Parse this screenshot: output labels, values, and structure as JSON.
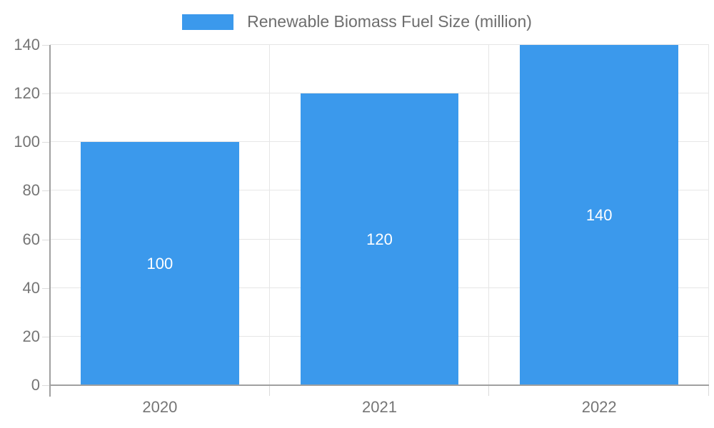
{
  "chart_data": {
    "type": "bar",
    "title": "Renewable Biomass Fuel Size (million)",
    "categories": [
      "2020",
      "2021",
      "2022"
    ],
    "values": [
      100,
      120,
      140
    ],
    "data_labels": [
      "100",
      "120",
      "140"
    ],
    "xlabel": "",
    "ylabel": "",
    "ylim": [
      0,
      140
    ],
    "yticks": [
      0,
      20,
      40,
      60,
      80,
      100,
      120,
      140
    ],
    "grid": true,
    "legend_position": "top",
    "bar_color": "#3b99ec",
    "data_label_color": "#ffffff"
  },
  "legend": {
    "label": "Renewable Biomass Fuel Size (million)",
    "swatch_color": "#3b99ec"
  },
  "colors": {
    "bar": "#3b99ec",
    "grid": "#e6e6e6",
    "axis": "#a0a0a0",
    "tick_text": "#757575",
    "legend_text": "#6e6e6e",
    "data_label": "#ffffff",
    "background": "#ffffff"
  }
}
